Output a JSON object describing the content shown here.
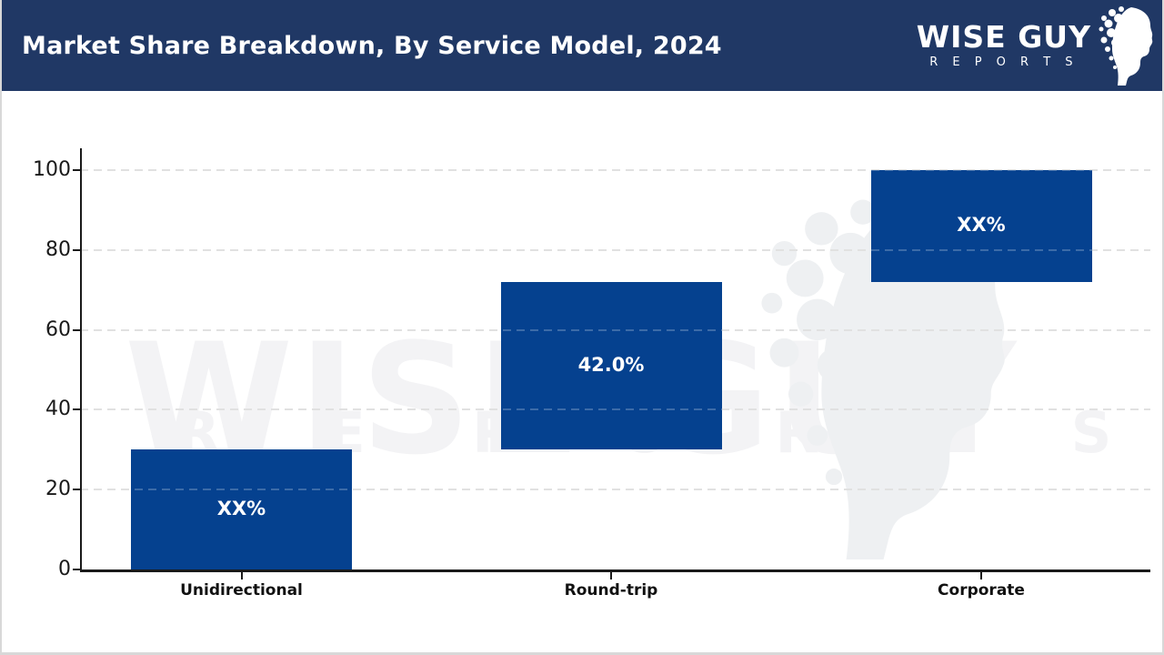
{
  "header": {
    "title": "Market Share Breakdown, By Service Model, 2024",
    "logo": {
      "line1": "WISE GUY",
      "line2": "R E P O R T S"
    }
  },
  "watermark": {
    "line1": "WISE GUY",
    "line2": "R E P O R T S"
  },
  "chart_data": {
    "type": "bar",
    "subtype": "floating-waterfall",
    "title": "Market Share Breakdown, By Service Model, 2024",
    "categories": [
      "Unidirectional",
      "Round-trip",
      "Corporate"
    ],
    "segments": [
      {
        "category": "Unidirectional",
        "start": 0,
        "end": 30,
        "label": "XX%"
      },
      {
        "category": "Round-trip",
        "start": 30,
        "end": 72,
        "label": "42.0%"
      },
      {
        "category": "Corporate",
        "start": 72,
        "end": 100,
        "label": "XX%"
      }
    ],
    "values": [
      30,
      42,
      28
    ],
    "yticks": [
      0,
      20,
      40,
      60,
      80,
      100
    ],
    "ylim": [
      0,
      105
    ],
    "xlabel": "",
    "ylabel": "",
    "grid": "horizontal-dashed",
    "legend": "none"
  },
  "colors": {
    "header_bg": "#203865",
    "bar": "#05418f",
    "bar_label": "#ffffff",
    "gridline": "#d9d9d9",
    "gridline_on_bar": "rgba(255,255,255,0.22)",
    "axis": "#1a1a1a",
    "watermark": "#f3f3f5",
    "watermark_icon": "#eef0f2"
  }
}
